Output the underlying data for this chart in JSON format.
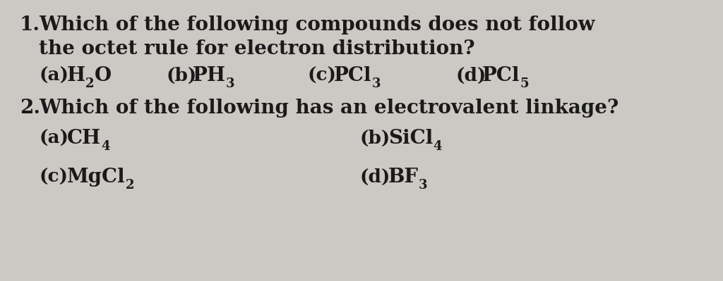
{
  "background_color": "#ccc8c4",
  "text_color": "#1a1a1a",
  "font_family": "DejaVu Serif",
  "fs_main": 20,
  "fs_sub": 13,
  "q1_num": "1.",
  "q1_l1": "Which of the following compounds does not follow",
  "q1_l2": "the octet rule for electron distribution?",
  "q2_num": "2.",
  "q2_l1": "Which of the following has an electrovalent linkage?"
}
